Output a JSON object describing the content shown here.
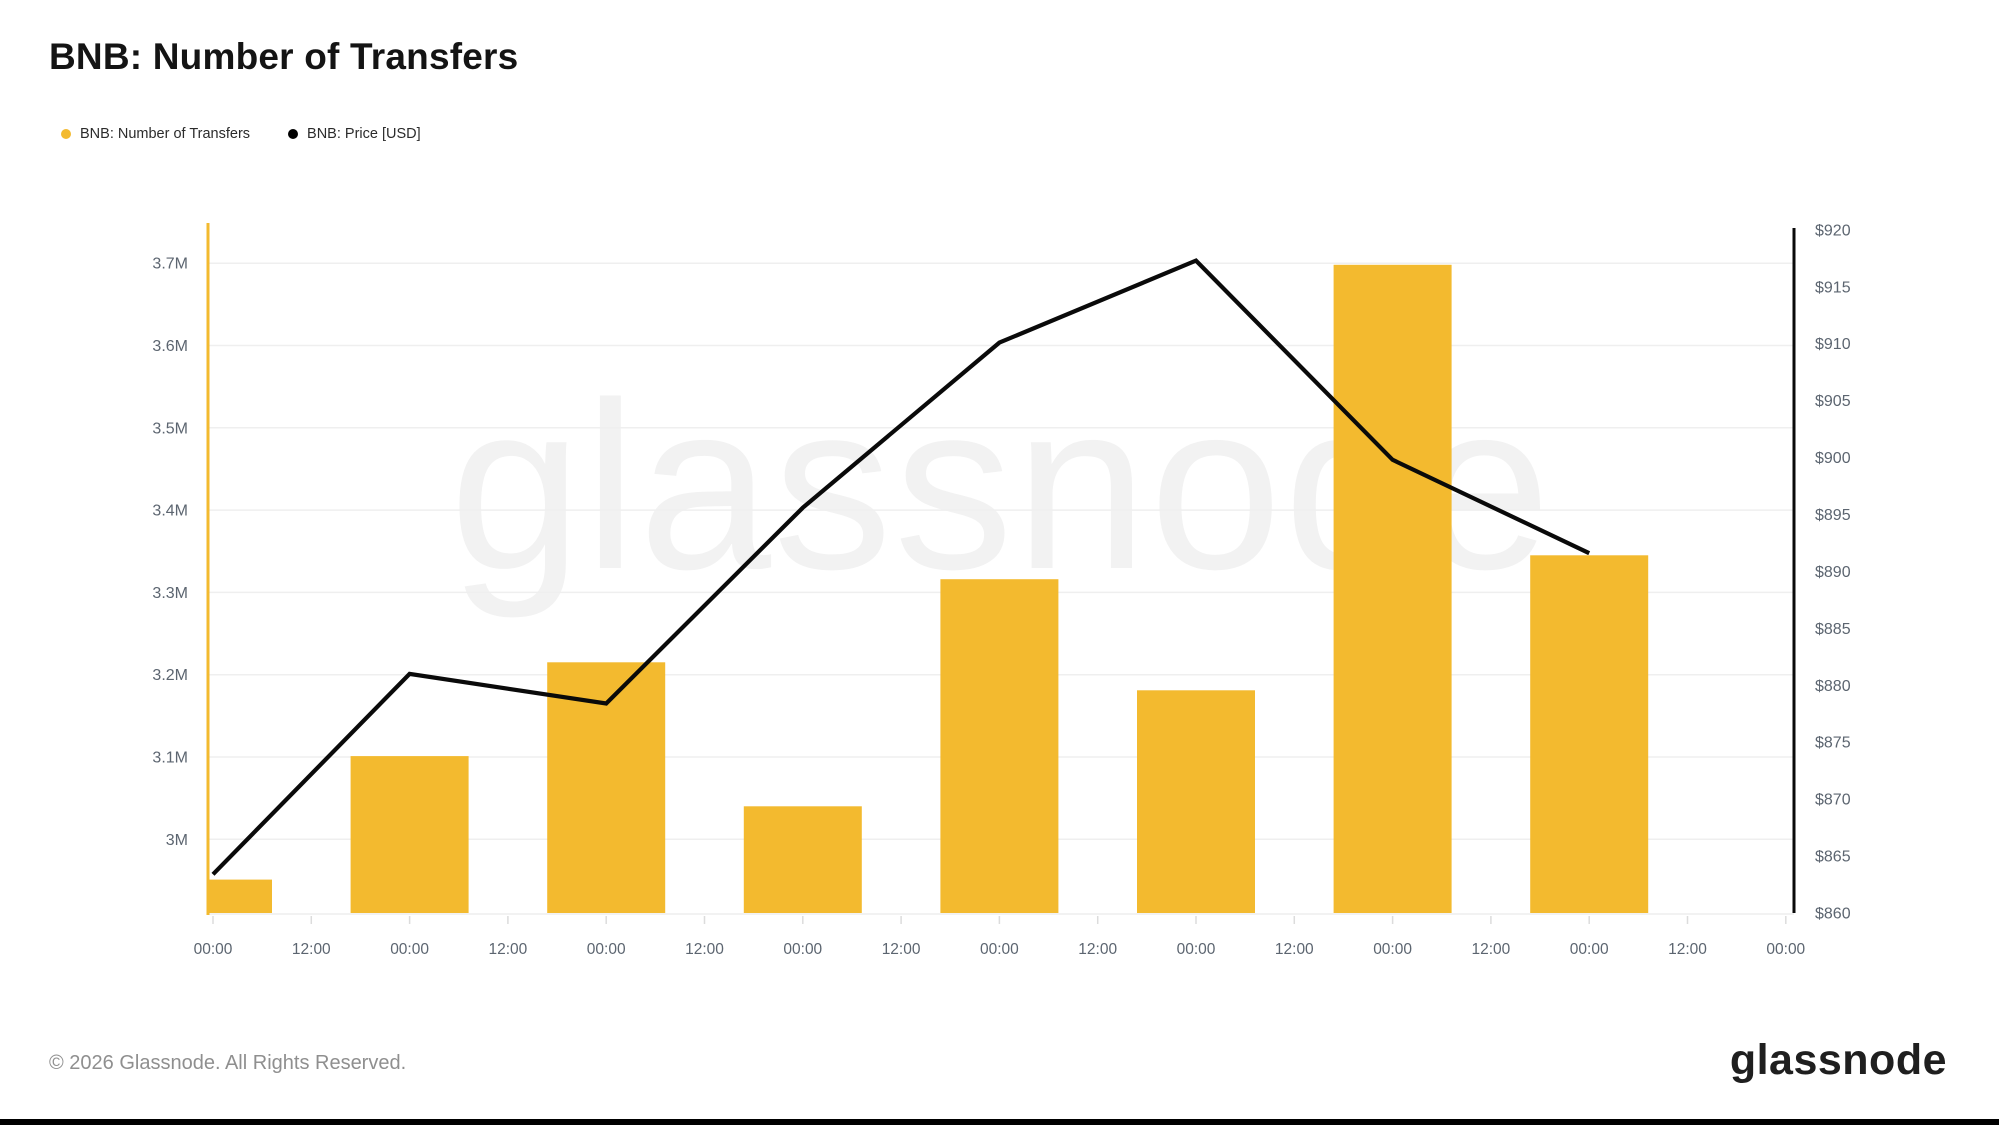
{
  "header": {
    "title": "BNB: Number of Transfers"
  },
  "legend": {
    "items": [
      {
        "label": "BNB: Number of Transfers",
        "color": "#F3BA2F"
      },
      {
        "label": "BNB: Price [USD]",
        "color": "#000000"
      }
    ]
  },
  "watermark": {
    "text": "glassnode"
  },
  "footer": {
    "copyright": "© 2026 Glassnode. All Rights Reserved.",
    "logo_text": "glassnode"
  },
  "chart_data": {
    "type": "bar",
    "title": "BNB: Number of Transfers",
    "grid": "horizontal",
    "legend_position": "top-left",
    "x_tick_labels": [
      "00:00",
      "12:00",
      "00:00",
      "12:00",
      "00:00",
      "12:00",
      "00:00",
      "12:00",
      "00:00",
      "12:00",
      "00:00",
      "12:00",
      "00:00",
      "12:00",
      "00:00",
      "12:00",
      "00:00"
    ],
    "series": [
      {
        "name": "BNB: Number of Transfers",
        "type": "bar",
        "axis": "left",
        "unit": "transfers (millions)",
        "color": "#F3BA2F",
        "tick_indices": [
          0,
          2,
          4,
          6,
          8,
          10,
          12,
          14
        ],
        "values": [
          2.951,
          3.101,
          3.215,
          3.04,
          3.316,
          3.181,
          3.698,
          3.345
        ]
      },
      {
        "name": "BNB: Price [USD]",
        "type": "line",
        "axis": "right",
        "unit": "USD",
        "color": "#0a0a0a",
        "tick_indices": [
          0,
          2,
          4,
          6,
          8,
          10,
          12,
          14
        ],
        "values": [
          863.4,
          881.0,
          878.4,
          895.6,
          910.1,
          917.3,
          899.8,
          891.6
        ]
      }
    ],
    "left_axis": {
      "min": 2.9104,
      "max": 3.7488,
      "color": "#F3BA2F",
      "ticks": [
        {
          "label": "3M",
          "value": 3.0
        },
        {
          "label": "3.1M",
          "value": 3.1
        },
        {
          "label": "3.2M",
          "value": 3.2
        },
        {
          "label": "3.3M",
          "value": 3.3
        },
        {
          "label": "3.4M",
          "value": 3.4
        },
        {
          "label": "3.5M",
          "value": 3.5
        },
        {
          "label": "3.6M",
          "value": 3.6
        },
        {
          "label": "3.7M",
          "value": 3.7
        }
      ]
    },
    "right_axis": {
      "min": 860,
      "max": 920.6,
      "color": "#0a0a0a",
      "ticks": [
        {
          "label": "$860",
          "value": 860
        },
        {
          "label": "$865",
          "value": 865
        },
        {
          "label": "$870",
          "value": 870
        },
        {
          "label": "$875",
          "value": 875
        },
        {
          "label": "$880",
          "value": 880
        },
        {
          "label": "$885",
          "value": 885
        },
        {
          "label": "$890",
          "value": 890
        },
        {
          "label": "$895",
          "value": 895
        },
        {
          "label": "$900",
          "value": 900
        },
        {
          "label": "$905",
          "value": 905
        },
        {
          "label": "$910",
          "value": 910
        },
        {
          "label": "$915",
          "value": 915
        },
        {
          "label": "$920",
          "value": 920
        }
      ]
    }
  }
}
